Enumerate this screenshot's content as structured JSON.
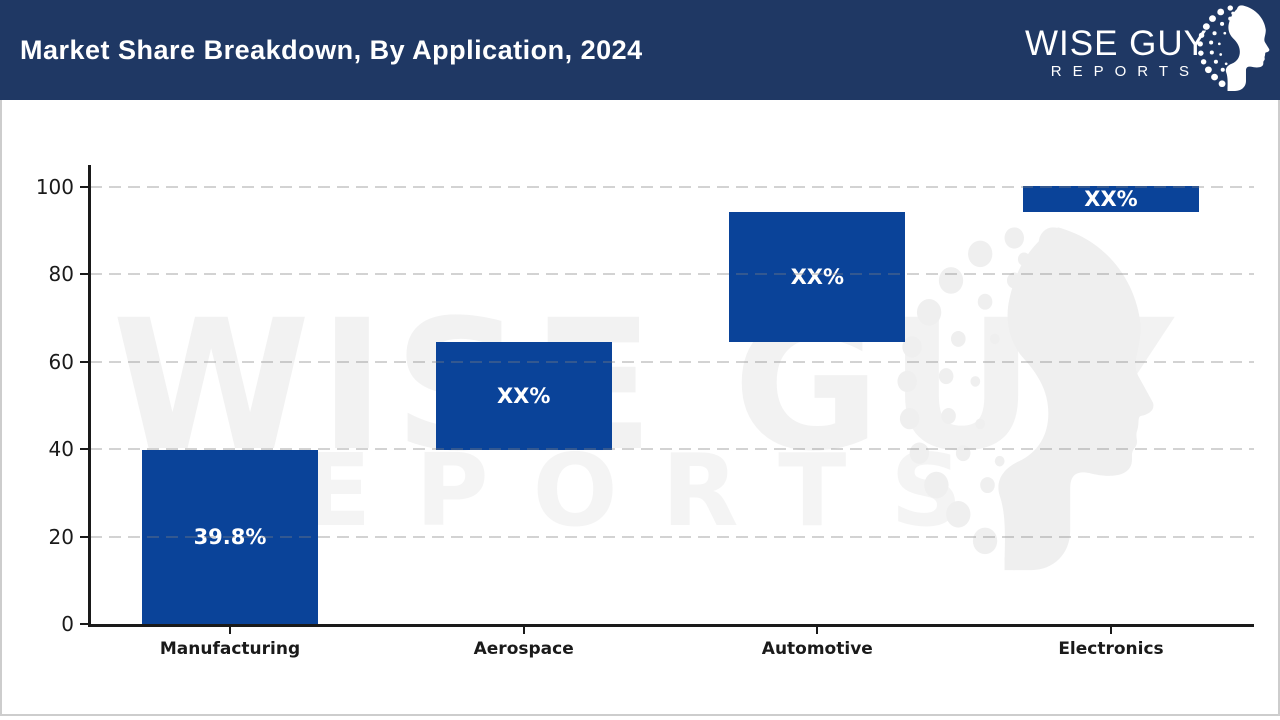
{
  "header": {
    "title": "Market Share Breakdown, By Application, 2024",
    "logo": {
      "line1": "WISE GUY",
      "line2": "REPORTS"
    }
  },
  "watermark": {
    "line1": "WISE GUY",
    "line2": "REPORTS"
  },
  "colors": {
    "header_bg": "#1f3864",
    "bar": "#0a4399",
    "grid": "rgba(128,128,128,0.35)",
    "axis_text": "#1a1a1a"
  },
  "chart_data": {
    "type": "bar",
    "subtype": "waterfall",
    "title": "Market Share Breakdown, By Application, 2024",
    "xlabel": "",
    "ylabel": "",
    "ylim": [
      0,
      105
    ],
    "y_ticks": [
      0,
      20,
      40,
      60,
      80,
      100
    ],
    "grid": "horizontal-dashed-over-bars",
    "legend": null,
    "bar_color": "#0a4399",
    "categories": [
      "Manufacturing",
      "Aerospace",
      "Automotive",
      "Electronics"
    ],
    "segments": [
      {
        "category": "Manufacturing",
        "start": 0,
        "end": 39.8,
        "label": "39.8%"
      },
      {
        "category": "Aerospace",
        "start": 39.8,
        "end": 64.5,
        "label": "XX%"
      },
      {
        "category": "Automotive",
        "start": 64.5,
        "end": 94.2,
        "label": "XX%"
      },
      {
        "category": "Electronics",
        "start": 94.2,
        "end": 100.2,
        "label": "XX%"
      }
    ]
  }
}
